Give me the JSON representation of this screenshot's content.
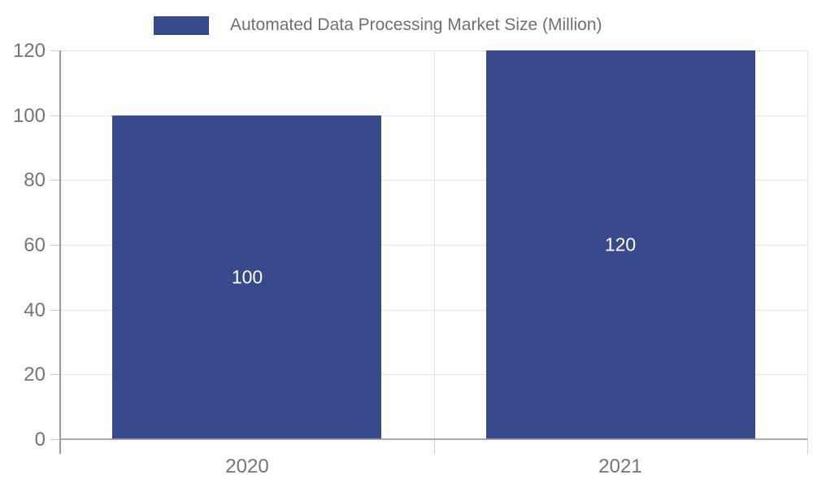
{
  "chart_data": {
    "type": "bar",
    "title": "Automated Data Processing Market Size (Million)",
    "categories": [
      "2020",
      "2021"
    ],
    "series": [
      {
        "name": "Automated Data Processing Market Size (Million)",
        "values": [
          100,
          120
        ],
        "data_labels": [
          "100",
          "120"
        ]
      }
    ],
    "xlabel": "",
    "ylabel": "",
    "ylim": [
      0,
      120
    ],
    "yticks": [
      0,
      20,
      40,
      60,
      80,
      100,
      120
    ],
    "ytick_labels": [
      "0",
      "20",
      "40",
      "60",
      "80",
      "100",
      "120"
    ],
    "grid": true,
    "legend_position": "top",
    "colors": {
      "bar": "#38498c",
      "bar_label_text": "#ffffff",
      "grid_line": "#e4e4e4",
      "axis_line": "#9b9b9b",
      "tick_line": "#cccccc",
      "tick_text": "#757575",
      "legend_text": "#6e7079",
      "background": "#ffffff"
    }
  },
  "legend": {
    "label": "Automated Data Processing Market Size (Million)"
  }
}
